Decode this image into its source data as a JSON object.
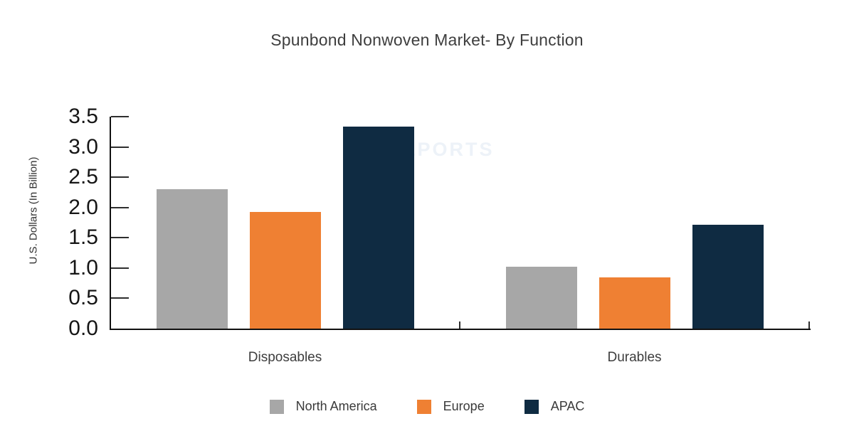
{
  "watermark": "REPORTS",
  "chart_data": {
    "type": "bar",
    "title": "Spunbond Nonwoven Market- By Function",
    "categories": [
      "Disposables",
      "Durables"
    ],
    "series": [
      {
        "name": "North America",
        "color": "#a7a7a7",
        "values": [
          2.3,
          1.02
        ]
      },
      {
        "name": "Europe",
        "color": "#ef8033",
        "values": [
          1.93,
          0.84
        ]
      },
      {
        "name": "APAC",
        "color": "#0f2b42",
        "values": [
          3.33,
          1.71
        ]
      }
    ],
    "xlabel": "",
    "ylabel": "U.S. Dollars (In Billion)",
    "ylim": [
      0,
      3.5
    ],
    "ytick_step": 0.5,
    "yticks": [
      "3.5",
      "3.0",
      "2.5",
      "2.0",
      "1.5",
      "1.0",
      "0.5",
      "0.0"
    ],
    "grid": false,
    "legend_position": "bottom"
  }
}
